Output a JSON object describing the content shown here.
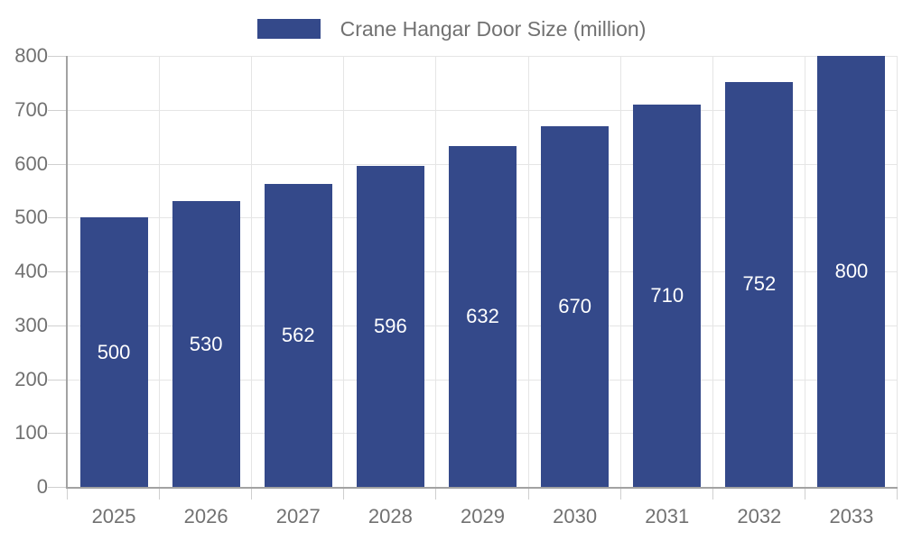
{
  "chart_data": {
    "type": "bar",
    "title": "Crane Hangar Door Size (million)",
    "categories": [
      "2025",
      "2026",
      "2027",
      "2028",
      "2029",
      "2030",
      "2031",
      "2032",
      "2033"
    ],
    "series": [
      {
        "name": "Crane Hangar Door Size (million)",
        "values": [
          500,
          530,
          562,
          596,
          632,
          670,
          710,
          752,
          800
        ]
      }
    ],
    "value_labels_shown": true,
    "xlabel": "",
    "ylabel": "",
    "ylim": [
      0,
      800
    ],
    "yticks": [
      "0",
      "100",
      "200",
      "300",
      "400",
      "500",
      "600",
      "700",
      "800"
    ],
    "ytick_interval": 100,
    "grid": "on",
    "legend_position": "top"
  },
  "colors": {
    "bar": "#34498a",
    "value_label": "#ffffff",
    "axis_text": "#717171",
    "legend_text": "#717171",
    "gridline": "#e5e5e5",
    "axis_line": "#a2a2a2",
    "tick_mark": "#cfcfcf",
    "background": "#ffffff"
  }
}
